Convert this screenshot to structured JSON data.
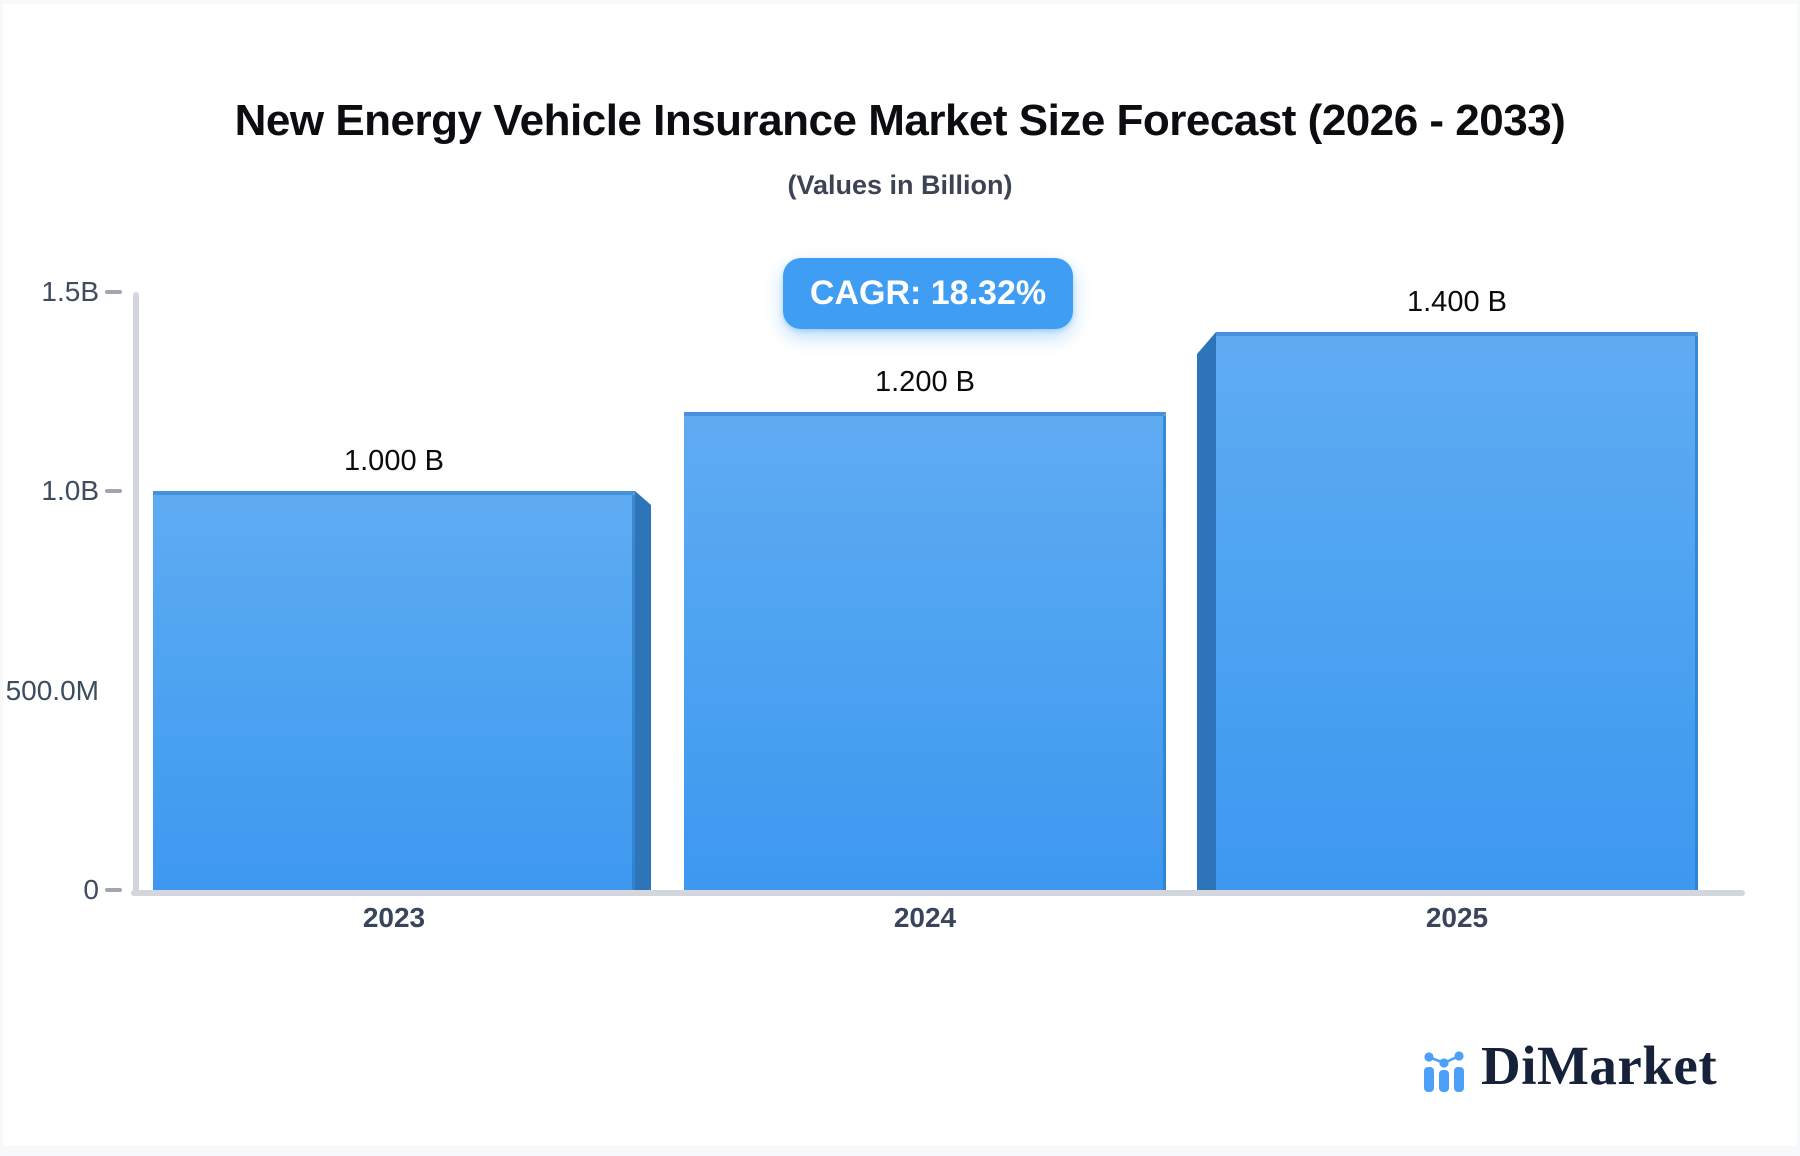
{
  "chart_data": {
    "type": "bar",
    "title": "New Energy Vehicle Insurance Market Size Forecast (2026 - 2033)",
    "subtitle": "(Values in Billion)",
    "cagr_label": "CAGR: 18.32%",
    "categories": [
      "2023",
      "2024",
      "2025"
    ],
    "values": [
      1.0,
      1.2,
      1.4
    ],
    "value_labels": [
      "1.000 B",
      "1.200 B",
      "1.400 B"
    ],
    "unit": "Billion",
    "xlabel": "",
    "ylabel": "",
    "ylim": [
      0,
      1.5
    ],
    "yticks": [
      {
        "label": "1.5B",
        "value": 1.5,
        "dash": true
      },
      {
        "label": "1.0B",
        "value": 1.0,
        "dash": true
      },
      {
        "label": "500.0M",
        "value": 0.5,
        "dash": false
      },
      {
        "label": "0",
        "value": 0,
        "dash": true
      }
    ],
    "grid": false,
    "legend": "none",
    "bar_color_top": "#5fabf2",
    "bar_color_bottom": "#3e98f0",
    "bar_side_color": "#2e74b8",
    "accent_color": "#3f9df3"
  },
  "footer": {
    "brand": "DiMarket"
  }
}
